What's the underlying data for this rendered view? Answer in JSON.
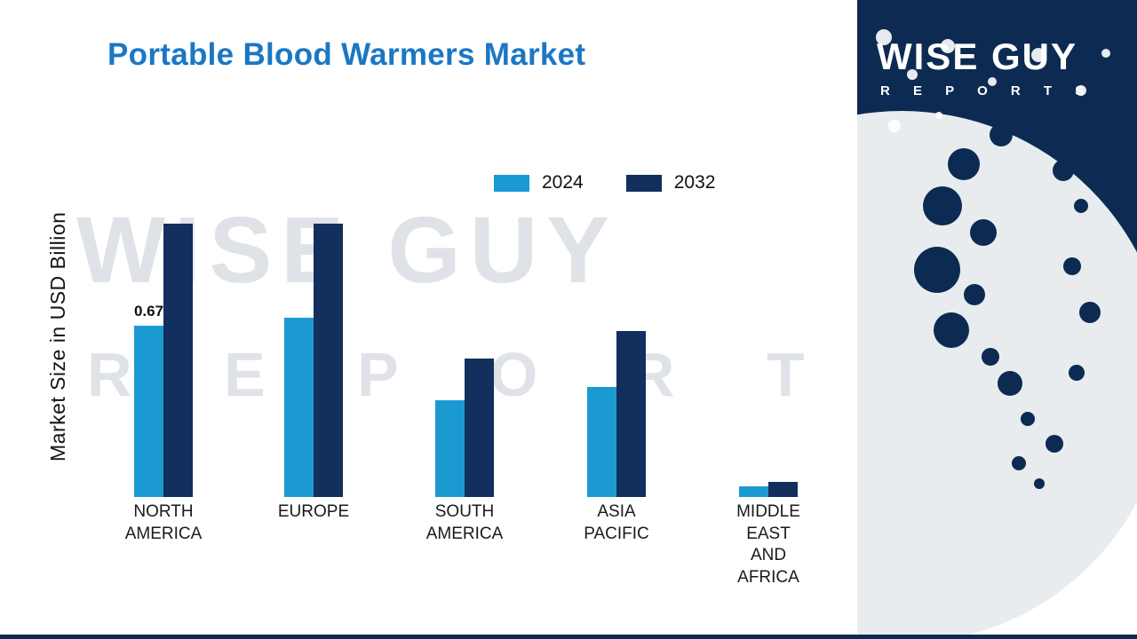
{
  "title": "Portable Blood Warmers Market",
  "y_axis_label": "Market Size in USD Billion",
  "watermark": {
    "line1": "WISE GUY",
    "line2": "R E P O R T S"
  },
  "logo": {
    "line1": "WISE GUY",
    "line2": "R E P O R T S"
  },
  "colors": {
    "title": "#1b77c4",
    "series_2024": "#1b9ad2",
    "series_2032": "#122f5d",
    "panel": "#0d2b52",
    "watermark": "#dadee3"
  },
  "chart_data": {
    "type": "bar",
    "title": "Portable Blood Warmers Market",
    "ylabel": "Market Size in USD Billion",
    "categories": [
      "NORTH AMERICA",
      "EUROPE",
      "SOUTH AMERICA",
      "ASIA PACIFIC",
      "MIDDLE EAST AND AFRICA"
    ],
    "category_label_lines": [
      [
        "NORTH",
        "AMERICA"
      ],
      [
        "EUROPE"
      ],
      [
        "SOUTH",
        "AMERICA"
      ],
      [
        "ASIA",
        "PACIFIC"
      ],
      [
        "MIDDLE",
        "EAST",
        "AND",
        "AFRICA"
      ]
    ],
    "series": [
      {
        "name": "2024",
        "color": "#1b9ad2",
        "values": [
          0.67,
          0.7,
          0.38,
          0.43,
          0.04
        ]
      },
      {
        "name": "2032",
        "color": "#122f5d",
        "values": [
          1.07,
          1.07,
          0.54,
          0.65,
          0.06
        ]
      }
    ],
    "ylim": [
      0,
      1.2
    ],
    "grid": false,
    "legend_position": "top",
    "data_label": {
      "category_index": 0,
      "series_index": 0,
      "text": "0.67"
    }
  }
}
